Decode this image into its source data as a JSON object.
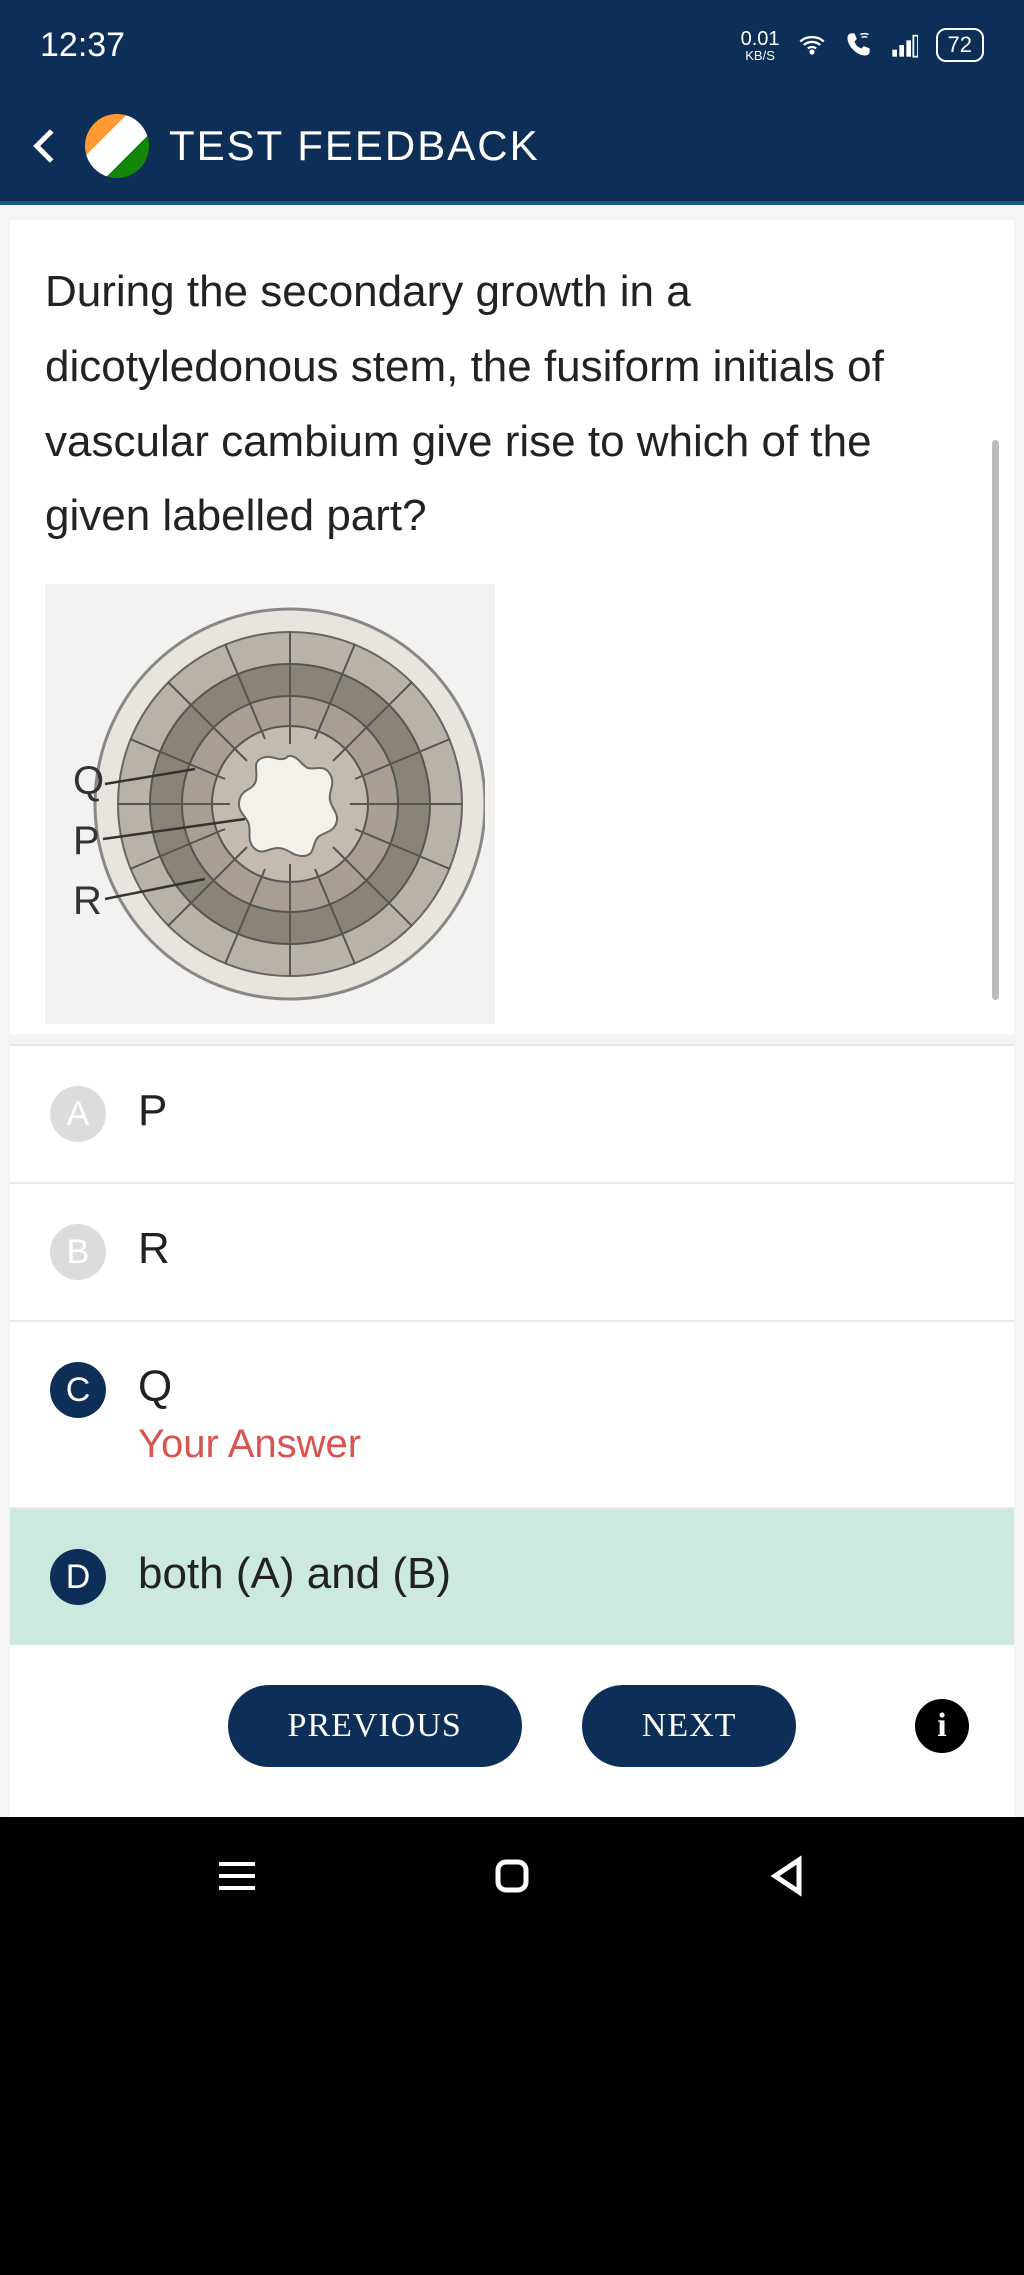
{
  "status_bar": {
    "time": "12:37",
    "speed_value": "0.01",
    "speed_unit": "KB/S",
    "battery": "72"
  },
  "header": {
    "title": "TEST FEEDBACK"
  },
  "question": {
    "text": "During the secondary growth in a dicotyledonous stem, the fusiform initials of vascular cambium give rise to which of the given labelled part?",
    "diagram": {
      "type": "diagram",
      "labels": [
        "Q",
        "P",
        "R"
      ],
      "outer_radius": 200,
      "ring_colors": [
        "#e8e4de",
        "#b8b2a8",
        "#8a8378",
        "#a89f92",
        "#c4bbb0"
      ],
      "background": "#f4f2f0",
      "line_color": "#666666"
    }
  },
  "options": [
    {
      "letter": "A",
      "text": "P",
      "selected": false,
      "is_user_answer": false,
      "is_correct": false
    },
    {
      "letter": "B",
      "text": "R",
      "selected": false,
      "is_user_answer": false,
      "is_correct": false
    },
    {
      "letter": "C",
      "text": "Q",
      "selected": true,
      "is_user_answer": true,
      "is_correct": false
    },
    {
      "letter": "D",
      "text": "both (A) and (B)",
      "selected": false,
      "is_user_answer": false,
      "is_correct": true
    }
  ],
  "your_answer_label": "Your Answer",
  "buttons": {
    "prev": "PREVIOUS",
    "next": "NEXT"
  },
  "colors": {
    "header_bg": "#0d2e56",
    "correct_bg": "#cce9e0",
    "your_answer_color": "#d9534f",
    "option_badge_inactive": "#dcdcdc",
    "option_badge_active": "#0d2e56"
  }
}
